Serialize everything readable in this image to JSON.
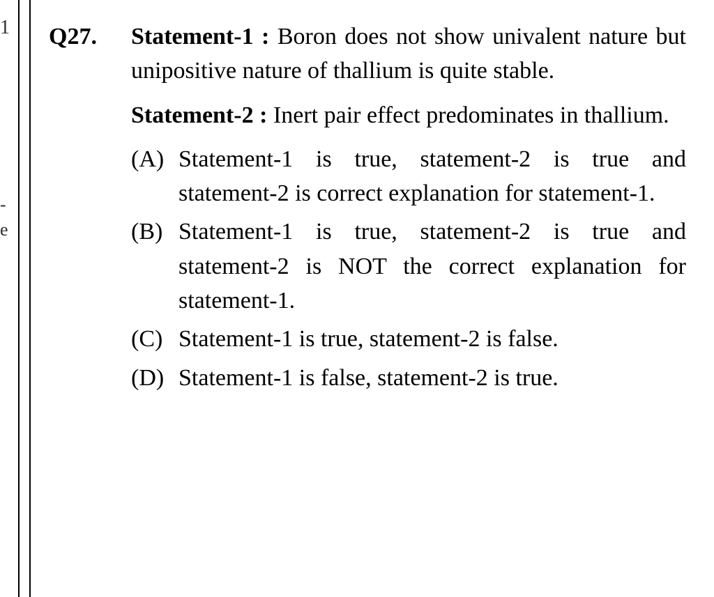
{
  "page": {
    "background_color": "#ffffff",
    "text_color": "#000000",
    "font_family": "Times New Roman",
    "base_fontsize_pt": 25
  },
  "stray": {
    "mark1": "1",
    "mark2_line1": "-",
    "mark2_line2": "e"
  },
  "question": {
    "number": "Q27.",
    "statement1_label": "Statement-1 :",
    "statement1_text": " Boron does not show univalent nature but unipositive nature of thallium is quite stable.",
    "statement2_label": "Statement-2 :",
    "statement2_text": " Inert pair effect predominates in thallium.",
    "options": [
      {
        "label": "(A)",
        "text": "Statement-1 is true, statement-2 is true and statement-2 is correct explanation for statement-1."
      },
      {
        "label": "(B)",
        "text": "Statement-1 is true, statement-2 is true and statement-2 is NOT the correct explanation for statement-1."
      },
      {
        "label": "(C)",
        "text": "Statement-1 is true, statement-2 is false."
      },
      {
        "label": "(D)",
        "text": "Statement-1 is false, statement-2 is true."
      }
    ]
  }
}
